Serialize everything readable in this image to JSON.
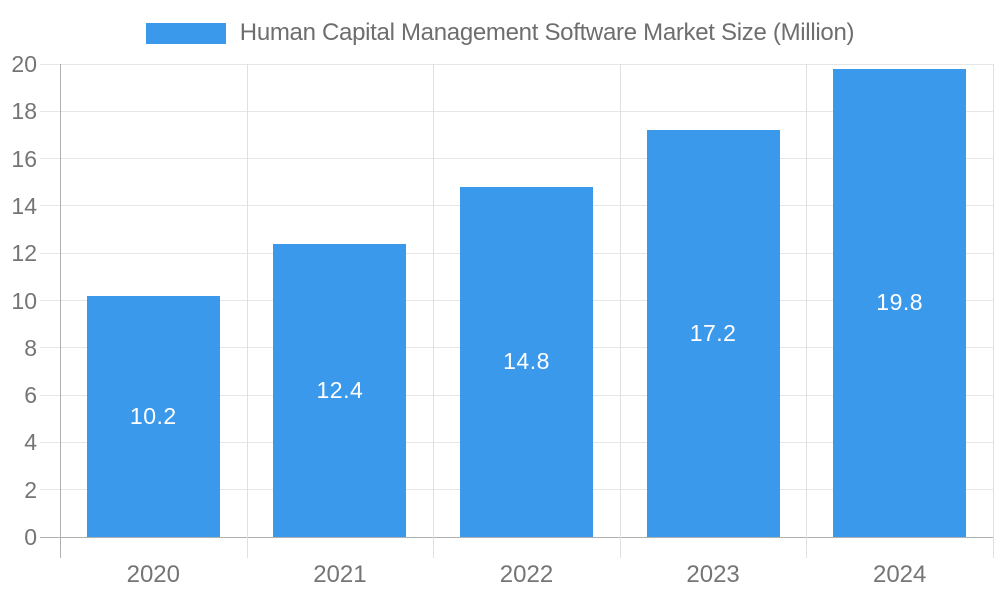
{
  "chart_data": {
    "type": "bar",
    "title": "Human Capital Management Software Market Size (Million)",
    "categories": [
      "2020",
      "2021",
      "2022",
      "2023",
      "2024"
    ],
    "values": [
      10.2,
      12.4,
      14.8,
      17.2,
      19.8
    ],
    "data_labels": [
      "10.2",
      "12.4",
      "14.8",
      "17.2",
      "19.8"
    ],
    "xlabel": "",
    "ylabel": "",
    "ylim": [
      0,
      20
    ],
    "ytick_step": 2,
    "ytick_labels": [
      "0",
      "2",
      "4",
      "6",
      "8",
      "10",
      "12",
      "14",
      "16",
      "18",
      "20"
    ],
    "grid": "horizontal gridlines at every y tick; vertical lines at category boundaries and right edge",
    "legend_position": "top-center"
  },
  "colors": {
    "bar": "#3B99EC",
    "legend_text": "#6E6E6E",
    "axis_text": "#757575",
    "data_label_text": "#FFFFFF",
    "axis_line": "#B0B0B0",
    "gridline": "#E6E6E6",
    "category_line": "#E0E0E0"
  }
}
